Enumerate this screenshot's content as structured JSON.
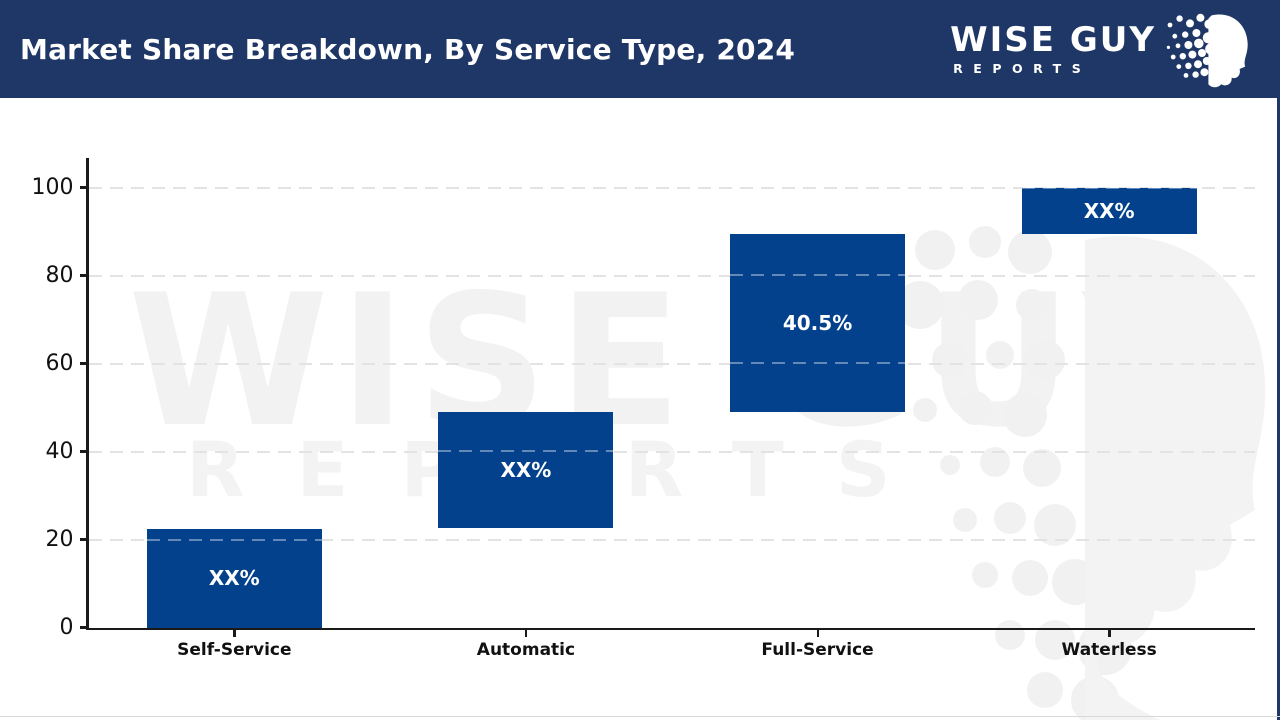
{
  "header": {
    "title": "Market Share Breakdown, By Service Type, 2024",
    "bg_color": "#1F3766",
    "logo": {
      "line1": "WISE GUY",
      "line2": "REPORTS"
    }
  },
  "watermark": {
    "line1": "WISE GUY",
    "line2": "REPORTS"
  },
  "chart_data": {
    "type": "bar",
    "subtype": "floating-waterfall",
    "title": "Market Share Breakdown, By Service Type, 2024",
    "categories": [
      "Self-Service",
      "Automatic",
      "Full-Service",
      "Waterless"
    ],
    "segments": [
      {
        "category": "Self-Service",
        "start": 0,
        "end": 22.5,
        "value": 22.5,
        "label": "XX%"
      },
      {
        "category": "Automatic",
        "start": 22.5,
        "end": 49,
        "value": 26.5,
        "label": "XX%"
      },
      {
        "category": "Full-Service",
        "start": 49,
        "end": 89.5,
        "value": 40.5,
        "label": "40.5%"
      },
      {
        "category": "Waterless",
        "start": 89.5,
        "end": 100,
        "value": 10.5,
        "label": "XX%"
      }
    ],
    "yticks": [
      0,
      20,
      40,
      60,
      80,
      100
    ],
    "ylim": [
      0,
      105
    ],
    "xlabel": "",
    "ylabel": "",
    "grid": "horizontal-dashed",
    "legend": "none",
    "bar_color": "#04418C",
    "bar_label_color": "#FFFFFF",
    "axis_color": "#1a1a1a"
  }
}
